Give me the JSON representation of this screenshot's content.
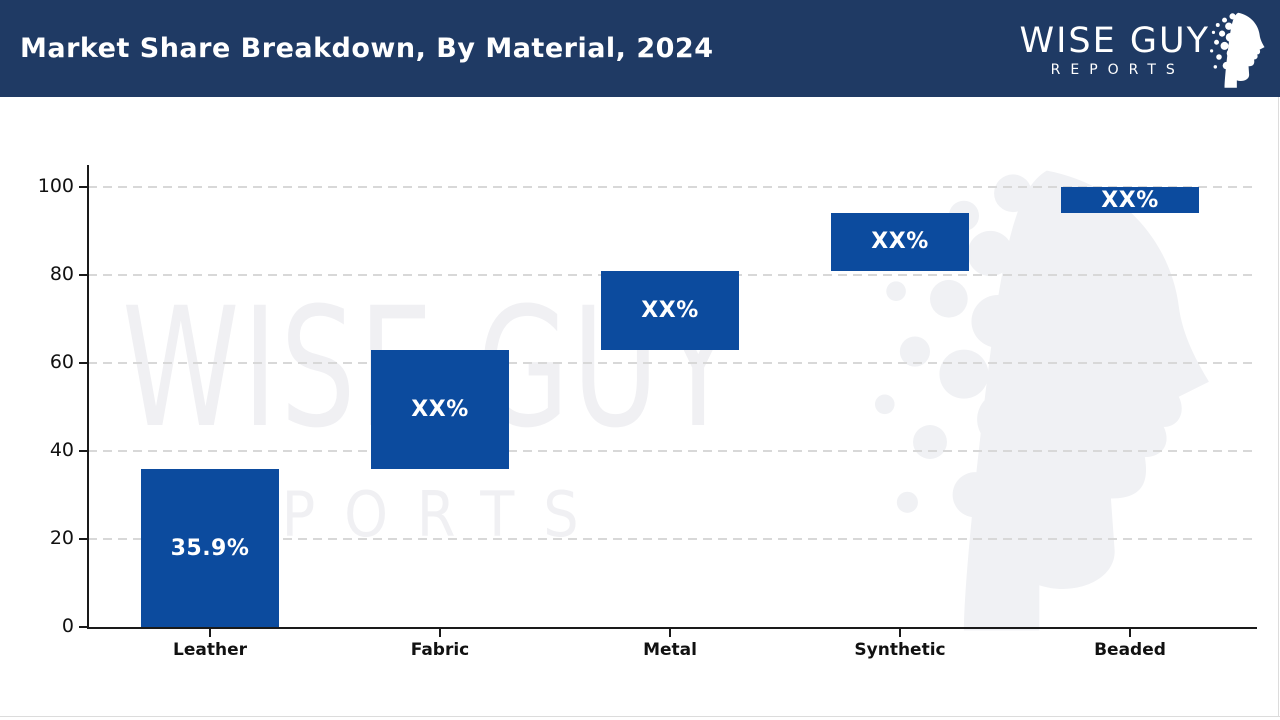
{
  "header": {
    "title": "Market Share Breakdown, By Material, 2024",
    "bg_color": "#1f3a64"
  },
  "logo": {
    "name": "WISE GUY",
    "sub": "REPORTS"
  },
  "watermark": {
    "line1": "WISE GUY",
    "line2": "REPORTS"
  },
  "chart_data": {
    "type": "bar",
    "subtype": "waterfall",
    "title": "Market Share Breakdown, By Material, 2024",
    "categories": [
      "Leather",
      "Fabric",
      "Metal",
      "Synthetic",
      "Beaded"
    ],
    "segments": [
      {
        "category": "Leather",
        "start": 0,
        "end": 35.9,
        "label": "35.9%"
      },
      {
        "category": "Fabric",
        "start": 35.9,
        "end": 63,
        "label": "XX%"
      },
      {
        "category": "Metal",
        "start": 63,
        "end": 81,
        "label": "XX%"
      },
      {
        "category": "Synthetic",
        "start": 81,
        "end": 94,
        "label": "XX%"
      },
      {
        "category": "Beaded",
        "start": 94,
        "end": 100,
        "label": "XX%"
      }
    ],
    "ylim": [
      0,
      105
    ],
    "yticks": [
      0,
      20,
      40,
      60,
      80,
      100
    ],
    "grid": "horizontal dashed",
    "bar_color": "#0c4b9e",
    "label_color": "#ffffff",
    "axis_color": "#1a1a1a"
  }
}
